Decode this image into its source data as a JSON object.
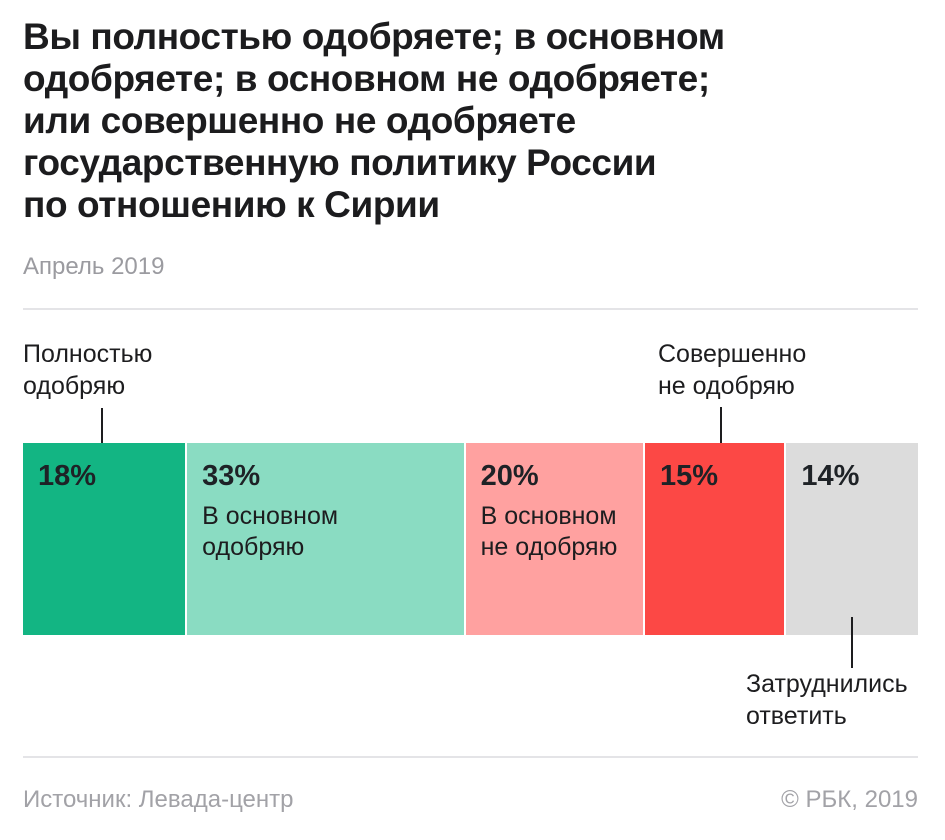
{
  "header": {
    "title": "Вы полностью одобряете; в основном\nодобряете; в основном не одобряете;\nили совершенно не одобряете\nгосударственную политику России\nпо отношению к Сирии",
    "subtitle": "Апрель 2019"
  },
  "chart_data": {
    "type": "bar",
    "orientation": "horizontal",
    "stacked": true,
    "unit": "%",
    "title": "Вы полностью одобряете; в основном одобряете; в основном не одобряете; или совершенно не одобряете государственную политику России по отношению к Сирии",
    "subtitle": "Апрель 2019",
    "categories": [
      "Полностью одобряю",
      "В основном одобряю",
      "В основном не одобряю",
      "Совершенно не одобряю",
      "Затруднились ответить"
    ],
    "values": [
      18,
      33,
      20,
      15,
      14
    ],
    "labels": [
      "18%",
      "33%",
      "20%",
      "15%",
      "14%"
    ],
    "segment_colors": [
      "#13b583",
      "#8adcc2",
      "#ffa1a0",
      "#fc4845",
      "#dcdcdc"
    ],
    "xlim": [
      0,
      100
    ],
    "grid": false,
    "legend": "inline-annotations"
  },
  "annotations": {
    "fully_approve": "Полностью\nодобряю",
    "mostly_approve": "В основном\nодобряю",
    "mostly_disapprove": "В основном\nне одобряю",
    "fully_disapprove": "Совершенно\nне одобряю",
    "undecided": "Затруднились\nответить"
  },
  "footer": {
    "source": "Источник: Левада-центр",
    "copyright": "© РБК, 2019"
  },
  "colors": {
    "background": "#ffffff",
    "text_primary": "#1c1c1e",
    "text_muted": "#9b9ba0",
    "divider": "#e4e4e7",
    "connector_line": "#1d1d1f"
  }
}
